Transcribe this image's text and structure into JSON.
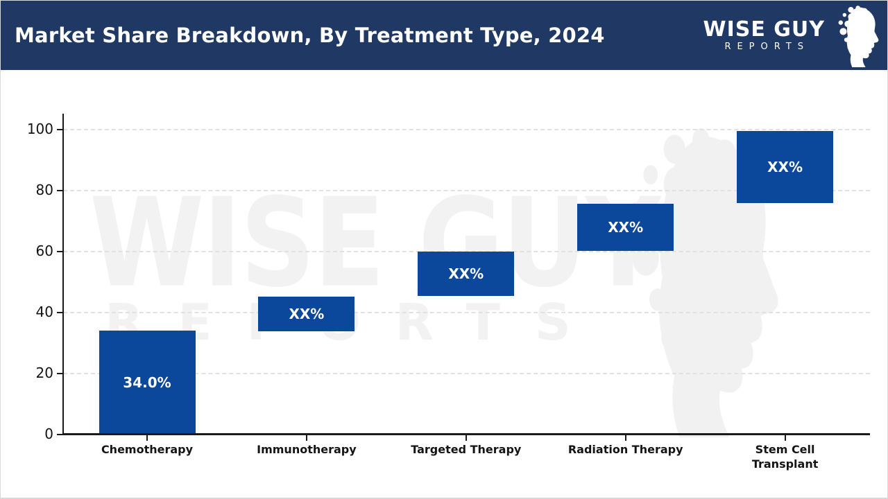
{
  "header": {
    "title": "Market Share Breakdown, By Treatment Type, 2024",
    "logo": {
      "line1": "WISE GUY",
      "line2": "REPORTS"
    }
  },
  "watermark": {
    "line1": "WISE GUY",
    "line2": "REPORTS"
  },
  "colors": {
    "header_bg": "#1F3864",
    "bar": "#0B479B",
    "bar_label": "#FFFFFF",
    "grid": "#E1E1E1",
    "axis": "#1A1A1A",
    "wm": "#F2F2F2"
  },
  "chart_data": {
    "type": "bar",
    "subtype": "waterfall",
    "title": "Market Share Breakdown, By Treatment Type, 2024",
    "xlabel": "",
    "ylabel": "",
    "ylim": [
      0,
      105
    ],
    "yticks": [
      0,
      20,
      40,
      60,
      80,
      100
    ],
    "grid": "horizontal-dashed",
    "legend": "none",
    "categories": [
      "Chemotherapy",
      "Immunotherapy",
      "Targeted Therapy",
      "Radiation Therapy",
      "Stem Cell\nTransplant"
    ],
    "segments": [
      {
        "category": "Chemotherapy",
        "start": 0,
        "end": 34.0,
        "label": "34.0%"
      },
      {
        "category": "Immunotherapy",
        "start": 33.9,
        "end": 45.3,
        "label": "XX%"
      },
      {
        "category": "Targeted Therapy",
        "start": 45.5,
        "end": 59.9,
        "label": "XX%"
      },
      {
        "category": "Radiation Therapy",
        "start": 60.2,
        "end": 75.6,
        "label": "XX%"
      },
      {
        "category": "Stem Cell\nTransplant",
        "start": 75.8,
        "end": 99.5,
        "label": "XX%"
      }
    ]
  }
}
